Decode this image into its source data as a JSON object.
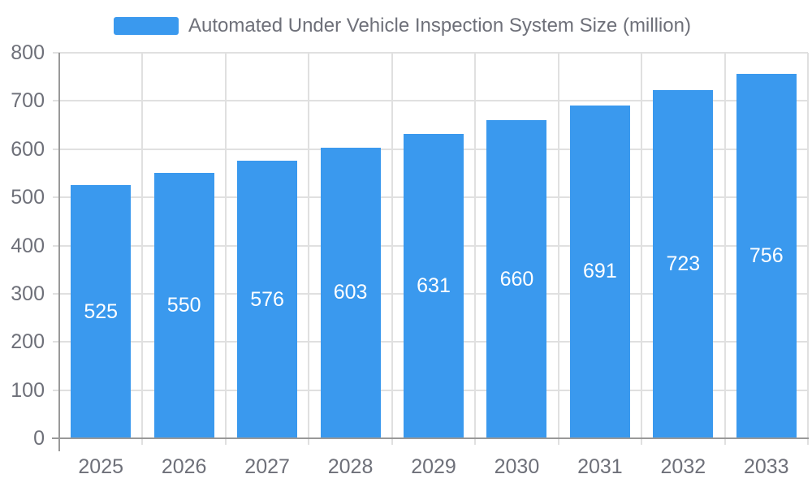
{
  "legend": {
    "label": "Automated Under Vehicle Inspection System Size (million)"
  },
  "chart_data": {
    "type": "bar",
    "title": "Automated Under Vehicle Inspection System Size (million)",
    "categories": [
      "2025",
      "2026",
      "2027",
      "2028",
      "2029",
      "2030",
      "2031",
      "2032",
      "2033"
    ],
    "values": [
      525,
      550,
      576,
      603,
      631,
      660,
      691,
      723,
      756
    ],
    "xlabel": "",
    "ylabel": "",
    "ylim": [
      0,
      800
    ],
    "yticks": [
      0,
      100,
      200,
      300,
      400,
      500,
      600,
      700,
      800
    ],
    "grid": true,
    "legend_position": "top",
    "colors": {
      "bar": "#3A99EE",
      "bar_label": "#ffffff",
      "axis_text": "#6E7079",
      "axis_line": "#999999",
      "grid_line": "#E0E0E0"
    }
  }
}
